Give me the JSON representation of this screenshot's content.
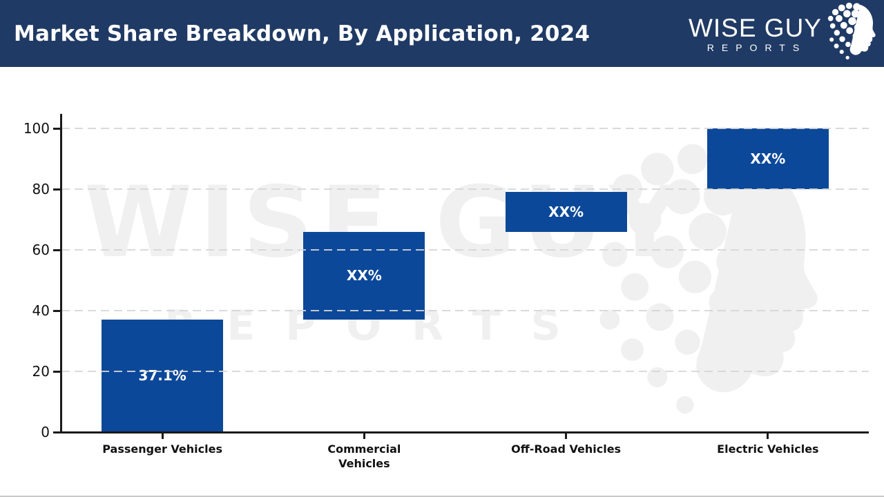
{
  "header": {
    "title": "Market Share Breakdown, By Application, 2024",
    "bg_color": "#1f3a64",
    "logo": {
      "line1": "WISE GUY",
      "line2": "REPORTS"
    }
  },
  "watermark": {
    "line1": "WISE GUY",
    "line2": "REPORTS"
  },
  "chart_data": {
    "type": "bar",
    "subtype": "floating-segment-waterfall",
    "title": "Market Share Breakdown, By Application, 2024",
    "categories": [
      "Passenger Vehicles",
      "Commercial\nVehicles",
      "Off-Road Vehicles",
      "Electric Vehicles"
    ],
    "bars": [
      {
        "category": "Passenger Vehicles",
        "start": 0,
        "end": 37.1,
        "label": "37.1%"
      },
      {
        "category": "Commercial Vehicles",
        "start": 37.1,
        "end": 66,
        "label": "XX%"
      },
      {
        "category": "Off-Road Vehicles",
        "start": 66,
        "end": 79,
        "label": "XX%"
      },
      {
        "category": "Electric Vehicles",
        "start": 80,
        "end": 100,
        "label": "XX%"
      }
    ],
    "yticks": [
      0,
      20,
      40,
      60,
      80,
      100
    ],
    "ylim": [
      0,
      105
    ],
    "xlabel": "",
    "ylabel": "",
    "grid": "horizontal-dashed",
    "legend_position": "none",
    "bar_color": "#0c4899",
    "bar_label_color": "#ffffff",
    "axis_color": "#1a1a1a",
    "grid_color": "#d6d6d6"
  }
}
